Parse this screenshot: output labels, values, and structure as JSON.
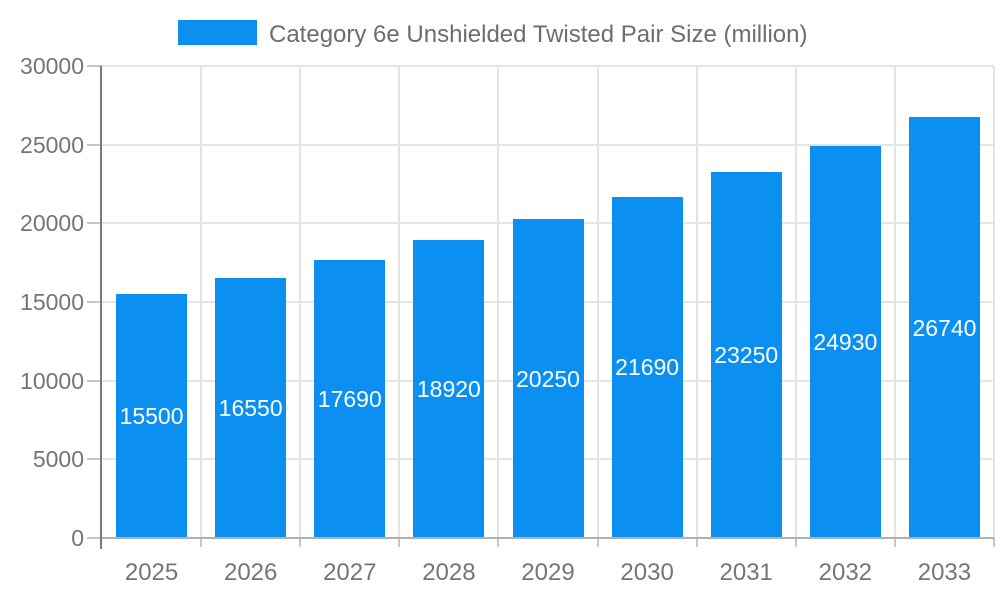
{
  "legend": {
    "label": "Category 6e Unshielded Twisted Pair Size (million)"
  },
  "chart_data": {
    "type": "bar",
    "title": "Category 6e Unshielded Twisted Pair Size (million)",
    "series_name": "Category 6e Unshielded Twisted Pair Size (million)",
    "categories": [
      "2025",
      "2026",
      "2027",
      "2028",
      "2029",
      "2030",
      "2031",
      "2032",
      "2033"
    ],
    "values": [
      15500,
      16550,
      17690,
      18920,
      20250,
      21690,
      23250,
      24930,
      26740
    ],
    "value_labels": [
      "15500",
      "16550",
      "17690",
      "18920",
      "20250",
      "21690",
      "23250",
      "24930",
      "26740"
    ],
    "xlabel": "",
    "ylabel": "",
    "ylim": [
      0,
      30000
    ],
    "ytick_step": 5000,
    "yticks": [
      0,
      5000,
      10000,
      15000,
      20000,
      25000,
      30000
    ],
    "ytick_labels": [
      "0",
      "5000",
      "10000",
      "15000",
      "20000",
      "25000",
      "30000"
    ],
    "grid": true,
    "legend_position": "top",
    "colors": {
      "bar": "#0b90f2",
      "value_label": "#ffffff",
      "axis_text": "#757575",
      "legend_text": "#6d6d6d",
      "gridline": "#e4e4e4",
      "y_axis_line": "#7a7a7a",
      "baseline": "#b0b0b0",
      "tick": "#c6c6c6"
    }
  }
}
